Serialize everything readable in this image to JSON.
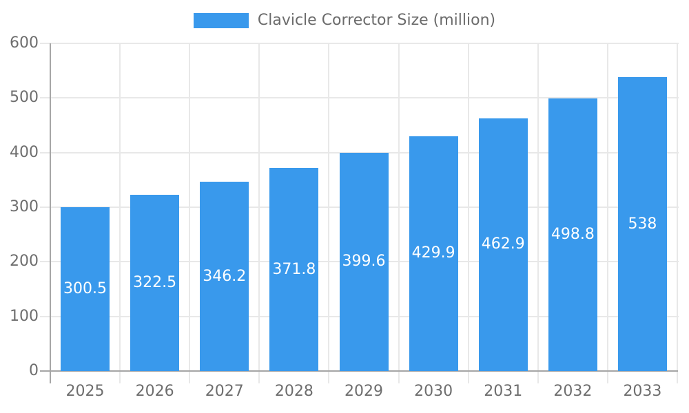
{
  "chart_data": {
    "type": "bar",
    "title": "Clavicle Corrector Size (million)",
    "categories": [
      "2025",
      "2026",
      "2027",
      "2028",
      "2029",
      "2030",
      "2031",
      "2032",
      "2033"
    ],
    "values": [
      300.5,
      322.5,
      346.2,
      371.8,
      399.6,
      429.9,
      462.9,
      498.8,
      538
    ],
    "value_labels": [
      "300.5",
      "322.5",
      "346.2",
      "371.8",
      "399.6",
      "429.9",
      "462.9",
      "498.8",
      "538"
    ],
    "xlabel": "",
    "ylabel": "",
    "ylim": [
      0,
      600
    ],
    "yticks": [
      0,
      100,
      200,
      300,
      400,
      500,
      600
    ],
    "legend_position": "top-center",
    "grid": true,
    "colors": {
      "bar": "#3999EC",
      "bar_label_text": "#ffffff",
      "legend_text": "#6b6b6b",
      "axis_text": "#6e6e6e",
      "grid_line": "#e8e8e8",
      "axis_line": "#a6a6a6"
    }
  }
}
